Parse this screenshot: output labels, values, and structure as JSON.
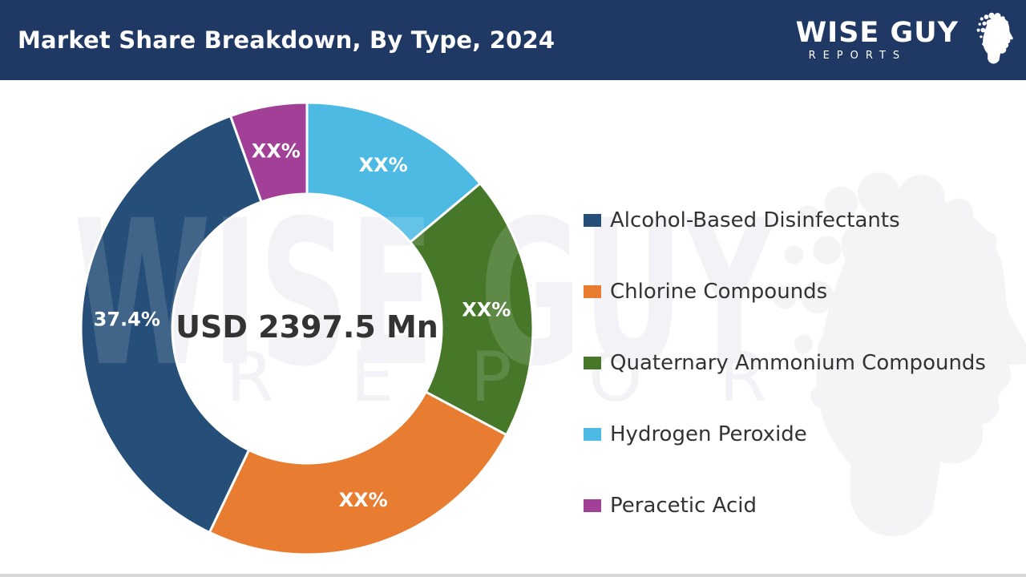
{
  "header": {
    "title": "Market Share Breakdown, By Type, 2024",
    "logo": {
      "wordmark": "WISE GUY",
      "subtext": "REPORTS"
    }
  },
  "watermark": {
    "line1": "WISE GUY",
    "line2": "R E P O R T S"
  },
  "colors": {
    "header_bg": "#203864",
    "alcohol_based_disinfectants": "#254E78",
    "chlorine_compounds": "#E87D31",
    "quaternary_ammonium_compounds": "#47782A",
    "hydrogen_peroxide": "#4DBAE4",
    "peracetic_acid": "#A23F97",
    "slice_label_text": "#FFFFFF",
    "center_text": "#333333",
    "legend_text": "#333333"
  },
  "chart_data": {
    "type": "pie",
    "subtype": "donut",
    "title": "Market Share Breakdown, By Type, 2024",
    "center_label": "USD 2397.5 Mn",
    "start_angle_deg": 0,
    "direction": "clockwise",
    "segments": [
      {
        "label": "Hydrogen Peroxide",
        "display_label": "XX%",
        "value_pct_est": 13.9,
        "color": "#4DBAE4"
      },
      {
        "label": "Quaternary Ammonium Compounds",
        "display_label": "XX%",
        "value_pct_est": 18.9,
        "color": "#47782A"
      },
      {
        "label": "Chlorine Compounds",
        "display_label": "XX%",
        "value_pct_est": 24.3,
        "color": "#E87D31"
      },
      {
        "label": "Alcohol-Based Disinfectants",
        "display_label": "37.4%",
        "value_pct_est": 37.4,
        "color": "#254E78"
      },
      {
        "label": "Peracetic Acid",
        "display_label": "XX%",
        "value_pct_est": 5.5,
        "color": "#A23F97"
      }
    ],
    "legend": {
      "position": "right",
      "items": [
        {
          "label": "Alcohol-Based Disinfectants",
          "color": "#254E78"
        },
        {
          "label": "Chlorine Compounds",
          "color": "#E87D31"
        },
        {
          "label": "Quaternary Ammonium Compounds",
          "color": "#47782A"
        },
        {
          "label": "Hydrogen Peroxide",
          "color": "#4DBAE4"
        },
        {
          "label": "Peracetic Acid",
          "color": "#A23F97"
        }
      ]
    }
  }
}
